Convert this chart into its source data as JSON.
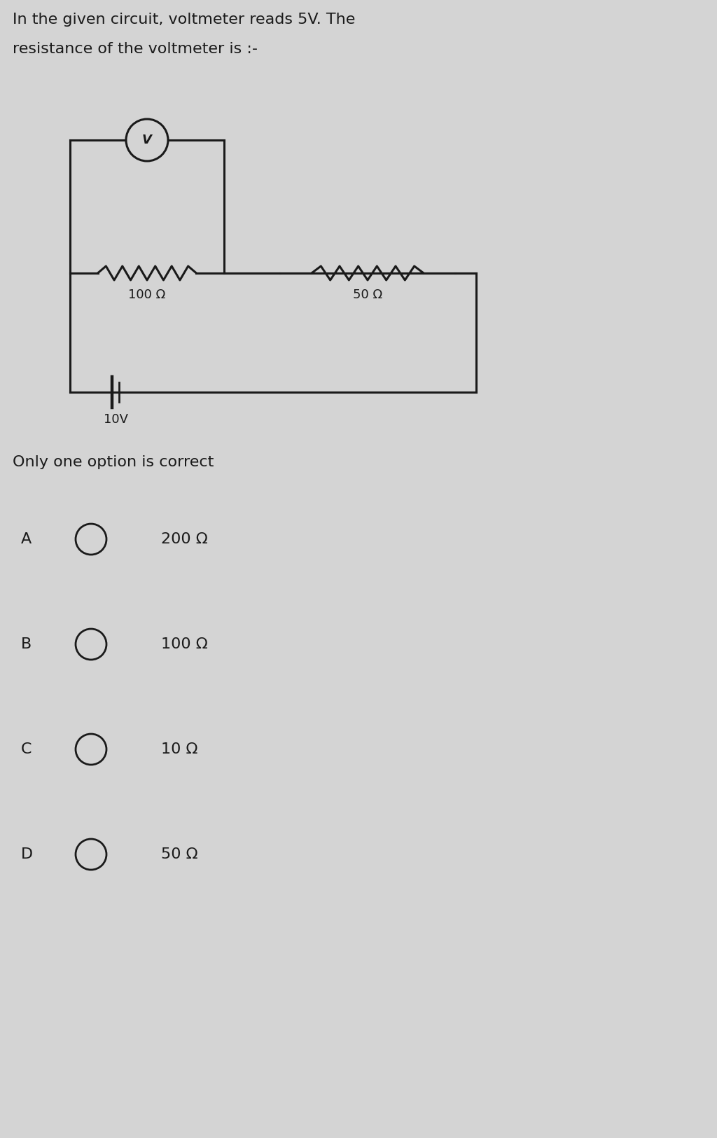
{
  "title_line1": "In the given circuit, voltmeter reads 5V. The",
  "title_line2": "resistance of the voltmeter is :-",
  "bg_color": "#d4d4d4",
  "text_color": "#1a1a1a",
  "circuit": {
    "resistor1_label": "100 Ω",
    "resistor2_label": "50 Ω",
    "battery_label": "10V",
    "voltmeter_label": "V"
  },
  "instruction": "Only one option is correct",
  "options": [
    {
      "letter": "A",
      "text": "200 Ω"
    },
    {
      "letter": "B",
      "text": "100 Ω"
    },
    {
      "letter": "C",
      "text": "10 Ω"
    },
    {
      "letter": "D",
      "text": "50 Ω"
    }
  ],
  "circle_color": "#1a1a1a",
  "line_color": "#1a1a1a",
  "font_size_title": 16,
  "font_size_options": 16,
  "font_size_labels": 13,
  "font_size_letter": 16
}
